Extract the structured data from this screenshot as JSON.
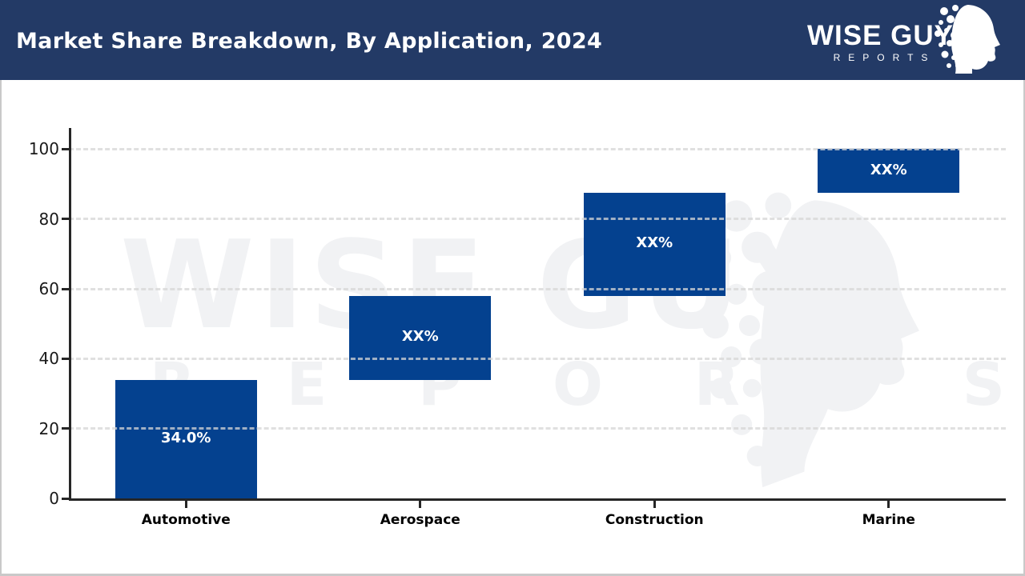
{
  "header": {
    "title": "Market Share Breakdown, By Application, 2024",
    "logo": {
      "line1": "WISE GUY",
      "line2": "REPORTS"
    }
  },
  "watermark": {
    "line1": "WISE GUY",
    "line2": "REPORTS",
    "line2_spaced": "R E P O R T S"
  },
  "colors": {
    "header_bg": "#233a66",
    "bar": "#04418f",
    "grid": "#d6d6d6",
    "axis": "#262626",
    "watermark": "#f1f2f4",
    "page_border": "#c9c9c9",
    "bar_label": "#ffffff"
  },
  "chart_data": {
    "type": "bar",
    "subtype": "waterfall-stacked",
    "title": "Market Share Breakdown, By Application, 2024",
    "categories": [
      "Automotive",
      "Aerospace",
      "Construction",
      "Marine"
    ],
    "series": [
      {
        "name": "Market Share (%)",
        "segments": [
          {
            "category": "Automotive",
            "start": 0,
            "end": 34,
            "label": "34.0%"
          },
          {
            "category": "Aerospace",
            "start": 34,
            "end": 58,
            "label": "XX%"
          },
          {
            "category": "Construction",
            "start": 58,
            "end": 87.5,
            "label": "XX%"
          },
          {
            "category": "Marine",
            "start": 87.5,
            "end": 100,
            "label": "XX%"
          }
        ]
      }
    ],
    "xlabel": "",
    "ylabel": "",
    "ylim": [
      0,
      100
    ],
    "yticks": [
      0,
      20,
      40,
      60,
      80,
      100
    ],
    "grid": "horizontal-dashed",
    "legend": "none",
    "bar_color": "#04418f",
    "value_label_color": "#ffffff"
  }
}
